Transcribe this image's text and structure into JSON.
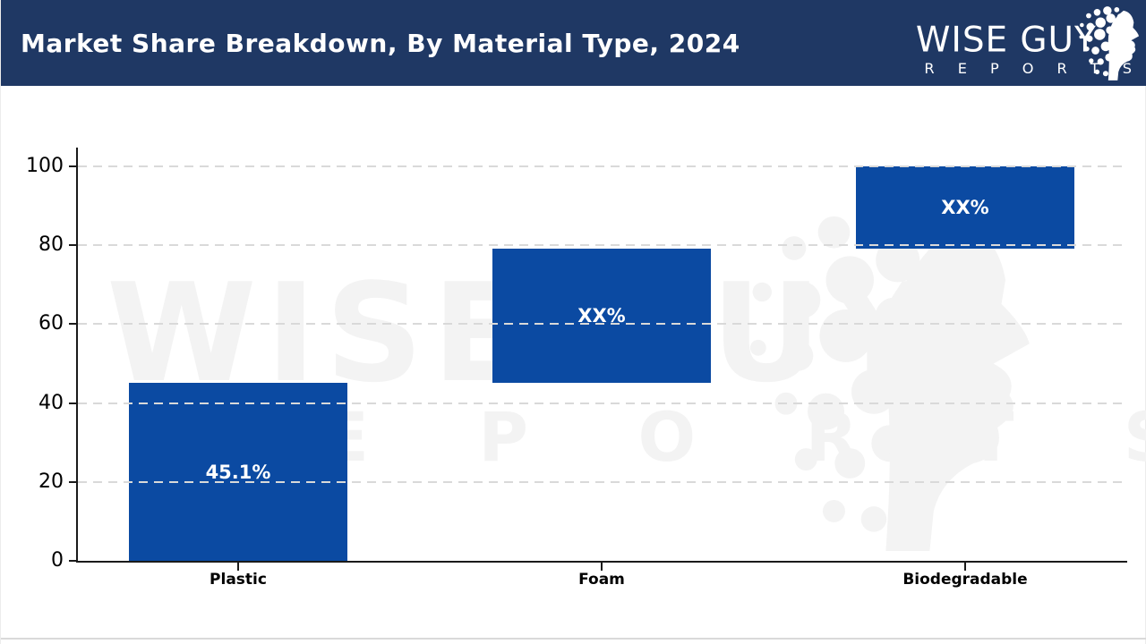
{
  "header": {
    "title": "Market Share Breakdown, By Material Type, 2024",
    "logo": {
      "line1": "WISE GUY",
      "line2": "R E P O R T S"
    }
  },
  "watermark": {
    "line1": "WISE GUY",
    "line2": "R E P O R T S"
  },
  "chart_data": {
    "type": "bar",
    "subtype": "waterfall",
    "title": "Market Share Breakdown, By Material Type, 2024",
    "categories": [
      "Plastic",
      "Foam",
      "Biodegradable"
    ],
    "segments": [
      {
        "category": "Plastic",
        "start": 0,
        "end": 45.1,
        "label": "45.1%"
      },
      {
        "category": "Foam",
        "start": 45.1,
        "end": 79.2,
        "label": "XX%"
      },
      {
        "category": "Biodegradable",
        "start": 79.2,
        "end": 100,
        "label": "XX%"
      }
    ],
    "xlabel": "",
    "ylabel": "",
    "ylim": [
      0,
      100
    ],
    "yticks": [
      0,
      20,
      40,
      60,
      80,
      100
    ],
    "grid": {
      "axis": "y",
      "style": "dashed",
      "color": "#d9d9d9"
    },
    "legend": "none",
    "bar_color": "#0b4aa2",
    "bar_label_color": "#ffffff"
  },
  "theme": {
    "header_bg": "#1f3864",
    "bar_blue": "#0b4aa2",
    "watermark_color": "#f3f3f3",
    "axis_color": "#1a1a1a",
    "gridline_color": "#d9d9d9"
  }
}
